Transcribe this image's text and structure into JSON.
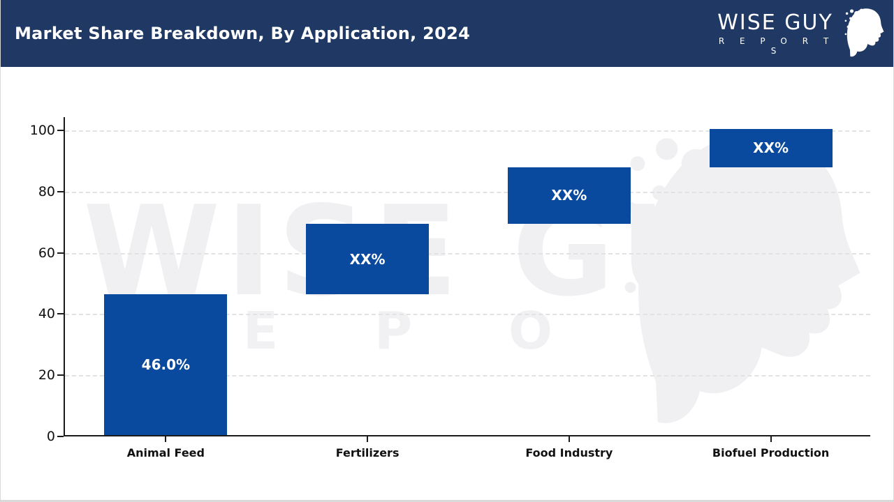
{
  "header": {
    "title": "Market Share Breakdown, By Application, 2024",
    "logo": {
      "line1": "WISE GUY",
      "line2": "R E P O R T S"
    }
  },
  "watermark": {
    "line1": "WISE GUY",
    "line2": "R E P O R T S"
  },
  "colors": {
    "header_bg": "#1f3864",
    "bar": "#0a4a9e",
    "bar_label": "#ffffff",
    "grid": "#e2e2e2",
    "axis": "#1a1a1a",
    "watermark": "#f0f0f3"
  },
  "chart_data": {
    "type": "bar",
    "subtype": "waterfall",
    "title": "Market Share Breakdown, By Application, 2024",
    "xlabel": "",
    "ylabel": "",
    "categories": [
      "Animal Feed",
      "Fertilizers",
      "Food Industry",
      "Biofuel Production"
    ],
    "segments": [
      {
        "category": "Animal Feed",
        "start": 0,
        "end": 46,
        "label": "46.0%"
      },
      {
        "category": "Fertilizers",
        "start": 46,
        "end": 69,
        "label": "XX%"
      },
      {
        "category": "Food Industry",
        "start": 69,
        "end": 87.5,
        "label": "XX%"
      },
      {
        "category": "Biofuel Production",
        "start": 87.5,
        "end": 100,
        "label": "XX%"
      }
    ],
    "yticks": [
      0,
      20,
      40,
      60,
      80,
      100
    ],
    "ylim": [
      0,
      104.5
    ],
    "grid": "horizontal-dashed",
    "legend": "none"
  }
}
